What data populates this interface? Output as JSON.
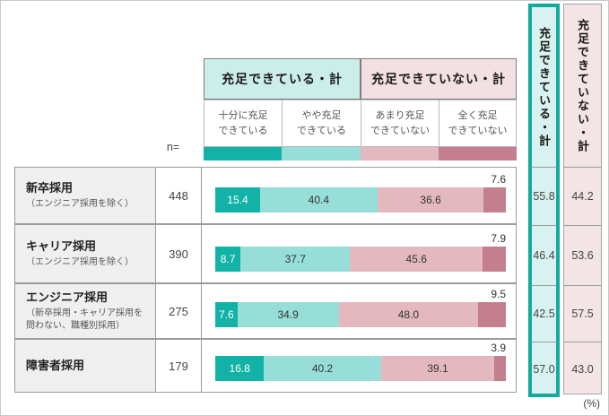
{
  "n_label": "n=",
  "unit_label": "(%)",
  "colors": {
    "seg_sufficient": "#12b2a6",
    "seg_somewhat": "#97ded8",
    "seg_not_quite": "#e3b9bf",
    "seg_not_at_all": "#c37f8d",
    "positive_header_bg": "#cceeeb",
    "negative_header_bg": "#f3e0e2",
    "summary_positive_bg": "#d7f2ef",
    "summary_negative_bg": "#f3e4e5",
    "accent_teal_border": "#12aba0"
  },
  "header": {
    "positive_group_label": "充足できている・計",
    "negative_group_label": "充足できていない・計",
    "sub_labels": [
      "十分に充足\nできている",
      "やや充足\nできている",
      "あまり充足\nできていない",
      "全く充足\nできていない"
    ]
  },
  "summary": {
    "positive_label": "充足できている・計",
    "negative_label": "充足できていない・計"
  },
  "rows": [
    {
      "category": "新卒採用",
      "note": "（エンジニア採用を除く）",
      "n": "448",
      "values": [
        "15.4",
        "40.4",
        "36.6",
        "7.6"
      ],
      "positive_total": "55.8",
      "negative_total": "44.2"
    },
    {
      "category": "キャリア採用",
      "note": "（エンジニア採用を除く）",
      "n": "390",
      "values": [
        "8.7",
        "37.7",
        "45.6",
        "7.9"
      ],
      "positive_total": "46.4",
      "negative_total": "53.6"
    },
    {
      "category": "エンジニア採用",
      "note": "（新卒採用・キャリア採用を\n問わない、職種別採用）",
      "n": "275",
      "values": [
        "7.6",
        "34.9",
        "48.0",
        "9.5"
      ],
      "positive_total": "42.5",
      "negative_total": "57.5"
    },
    {
      "category": "障害者採用",
      "note": "",
      "n": "179",
      "values": [
        "16.8",
        "40.2",
        "39.1",
        "3.9"
      ],
      "positive_total": "57.0",
      "negative_total": "43.0"
    }
  ],
  "chart_data": {
    "type": "bar",
    "stacked": true,
    "orientation": "horizontal",
    "unit": "%",
    "xlim": [
      0,
      100
    ],
    "categories": [
      "新卒採用（エンジニア採用を除く）",
      "キャリア採用（エンジニア採用を除く）",
      "エンジニア採用（新卒採用・キャリア採用を問わない、職種別採用）",
      "障害者採用"
    ],
    "n_values": [
      448,
      390,
      275,
      179
    ],
    "series": [
      {
        "name": "十分に充足できている",
        "values": [
          15.4,
          8.7,
          7.6,
          16.8
        ]
      },
      {
        "name": "やや充足できている",
        "values": [
          40.4,
          37.7,
          34.9,
          40.2
        ]
      },
      {
        "name": "あまり充足できていない",
        "values": [
          36.6,
          45.6,
          48.0,
          39.1
        ]
      },
      {
        "name": "全く充足できていない",
        "values": [
          7.6,
          7.9,
          9.5,
          3.9
        ]
      }
    ],
    "totals": [
      {
        "name": "充足できている・計",
        "values": [
          55.8,
          46.4,
          42.5,
          57.0
        ]
      },
      {
        "name": "充足できていない・計",
        "values": [
          44.2,
          53.6,
          57.5,
          43.0
        ]
      }
    ]
  }
}
